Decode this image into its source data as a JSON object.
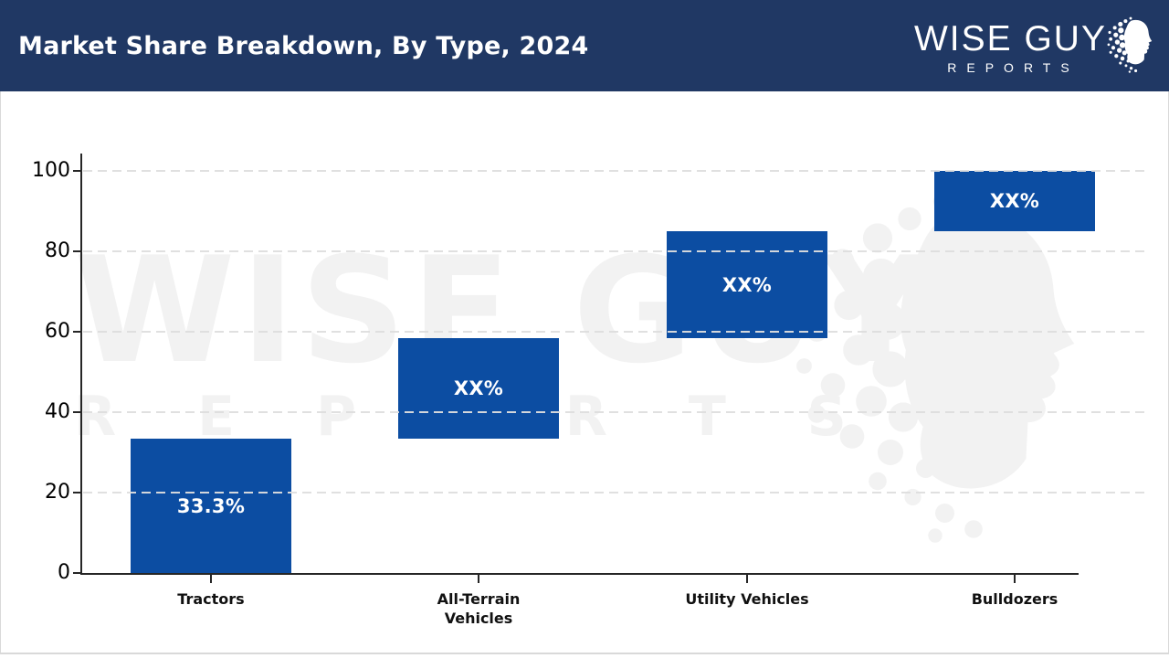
{
  "header": {
    "title": "Market Share Breakdown, By Type, 2024",
    "brand": {
      "line1": "WISE GUY",
      "line2": "REPORTS"
    }
  },
  "watermark": {
    "line1": "WISE GUY",
    "line2": "R E P O R T S"
  },
  "colors": {
    "header_bg": "#203864",
    "bar": "#0c4da2",
    "grid": "#e0e0e0",
    "watermark": "#f2f2f2",
    "page_border": "#d9d9d9"
  },
  "chart_data": {
    "type": "bar",
    "variant": "waterfall",
    "title": "Market Share Breakdown, By Type, 2024",
    "categories": [
      "Tractors",
      "All-Terrain Vehicles",
      "Utility Vehicles",
      "Bulldozers"
    ],
    "tick_labels": [
      "Tractors",
      "All-Terrain\nVehicles",
      "Utility Vehicles",
      "Bulldozers"
    ],
    "segments": [
      {
        "category": "Tractors",
        "start": 0,
        "end": 33.3,
        "label": "33.3%"
      },
      {
        "category": "All-Terrain Vehicles",
        "start": 33.3,
        "end": 58.3,
        "label": "XX%"
      },
      {
        "category": "Utility Vehicles",
        "start": 58.3,
        "end": 85.0,
        "label": "XX%"
      },
      {
        "category": "Bulldozers",
        "start": 85.0,
        "end": 100.0,
        "label": "XX%"
      }
    ],
    "xlabel": "",
    "ylabel": "",
    "ylim": [
      0,
      100
    ],
    "yticks": [
      0,
      20,
      40,
      60,
      80,
      100
    ],
    "grid": "horizontal-dashed",
    "grid_above_bars": true,
    "legend": "none",
    "bar_color": "#0c4da2"
  }
}
